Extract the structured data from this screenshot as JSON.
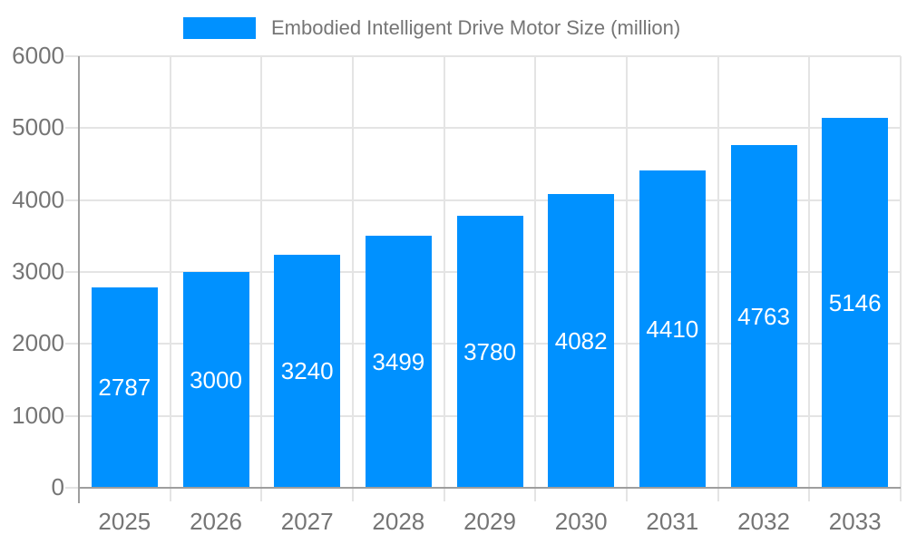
{
  "legend": {
    "label": "Embodied Intelligent Drive Motor Size (million)",
    "swatch_color": "#0091FF",
    "position": "top-center"
  },
  "colors": {
    "bar": "#0091FF",
    "grid_line": "#e4e4e4",
    "axis_line": "#9e9e9e",
    "axis_text": "#757575",
    "value_text": "#ffffff",
    "background": "#ffffff"
  },
  "chart_data": {
    "type": "bar",
    "title": "Embodied Intelligent Drive Motor Size (million)",
    "categories": [
      "2025",
      "2026",
      "2027",
      "2028",
      "2029",
      "2030",
      "2031",
      "2032",
      "2033"
    ],
    "series": [
      {
        "name": "Embodied Intelligent Drive Motor Size (million)",
        "values": [
          2787,
          3000,
          3240,
          3499,
          3780,
          4082,
          4410,
          4763,
          5146
        ]
      }
    ],
    "value_labels": "centered-inside-bars-white",
    "xlabel": "",
    "ylabel": "",
    "ylim": [
      0,
      6000
    ],
    "yticks": [
      0,
      1000,
      2000,
      3000,
      4000,
      5000,
      6000
    ],
    "grid": "horizontal-and-vertical",
    "legend_position": "top"
  }
}
